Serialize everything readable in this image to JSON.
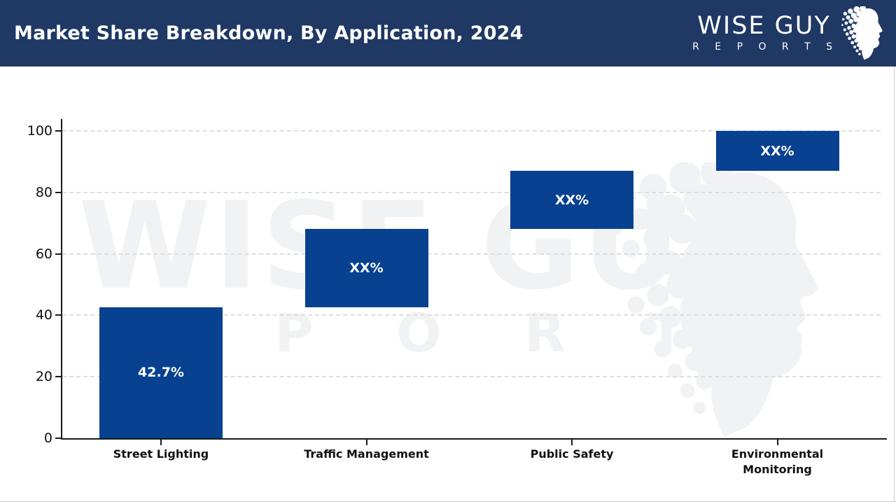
{
  "header": {
    "title": "Market Share Breakdown, By Application, 2024",
    "logo": {
      "line1": "WISE GUY",
      "line2": "R E P O R T S"
    }
  },
  "watermark": {
    "line1": "WISE GUY",
    "line2": "P O R T S"
  },
  "chart_data": {
    "type": "bar",
    "subtype": "waterfall",
    "title": "Market Share Breakdown, By Application, 2024",
    "categories": [
      "Street Lighting",
      "Traffic Management",
      "Public Safety",
      "Environmental Monitoring"
    ],
    "segments": [
      {
        "category": "Street Lighting",
        "start": 0,
        "end": 42.7,
        "label": "42.7%"
      },
      {
        "category": "Traffic Management",
        "start": 42.7,
        "end": 68,
        "label": "XX%"
      },
      {
        "category": "Public Safety",
        "start": 68,
        "end": 87,
        "label": "XX%"
      },
      {
        "category": "Environmental Monitoring",
        "start": 87,
        "end": 100,
        "label": "XX%"
      }
    ],
    "xlabel": "",
    "ylabel": "",
    "ylim": [
      0,
      100
    ],
    "yticks": [
      0,
      20,
      40,
      60,
      80,
      100
    ],
    "grid": "horizontal-dashed",
    "legend": "none",
    "bar_color": "#07418f",
    "bar_label_color": "#ffffff",
    "header_bg_color": "#1f3864",
    "grid_color": "#dedede",
    "axis_color": "#1a1a1a",
    "watermark_color": "#f1f2f3"
  }
}
